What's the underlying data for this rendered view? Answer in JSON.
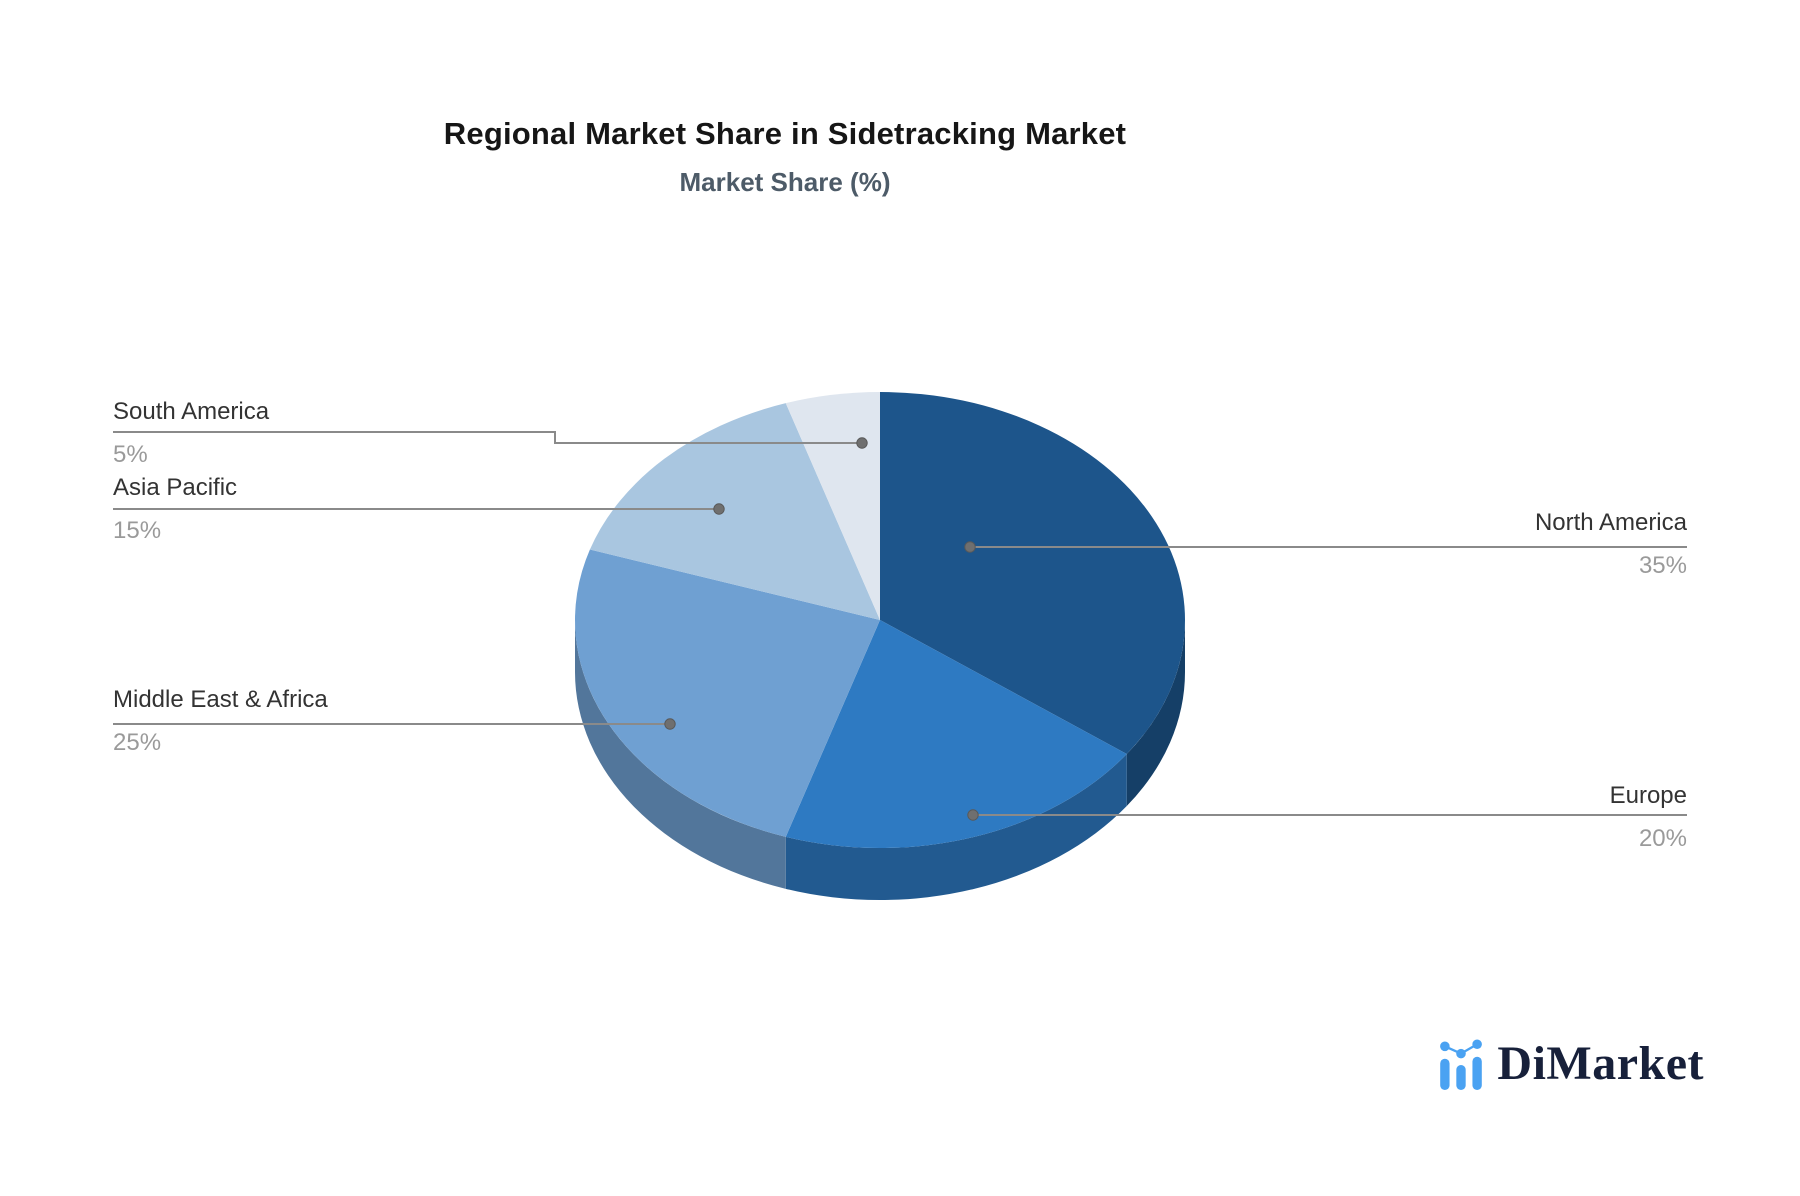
{
  "chart_data": {
    "type": "pie",
    "title": "Regional Market Share in Sidetracking Market",
    "subtitle": "Market Share (%)",
    "unit": "%",
    "effect": "3d",
    "start_angle_deg": 0,
    "direction": "clockwise",
    "legend_position": "none",
    "slices": [
      {
        "name": "North America",
        "value": 35,
        "label": "35%",
        "color": "#1d558b"
      },
      {
        "name": "Europe",
        "value": 20,
        "label": "20%",
        "color": "#2e7ac2"
      },
      {
        "name": "Middle East & Africa",
        "value": 25,
        "label": "25%",
        "color": "#6fa0d2"
      },
      {
        "name": "Asia Pacific",
        "value": 15,
        "label": "15%",
        "color": "#a9c6e0"
      },
      {
        "name": "South America",
        "value": 5,
        "label": "5%",
        "color": "#dfe6ef"
      }
    ]
  },
  "colors": {
    "background": "#ffffff",
    "title": "#161616",
    "subtitle": "#4d5b68",
    "label_name": "#333333",
    "label_value": "#9a9a9a",
    "connector_line": "#8a8a8a",
    "connector_dot": "#6f6f6f"
  },
  "branding": {
    "logo_text": "DiMarket",
    "logo_icon": "bar-line-chart-icon",
    "logo_accent_color": "#4aa2f2",
    "logo_text_color": "#17203a"
  }
}
